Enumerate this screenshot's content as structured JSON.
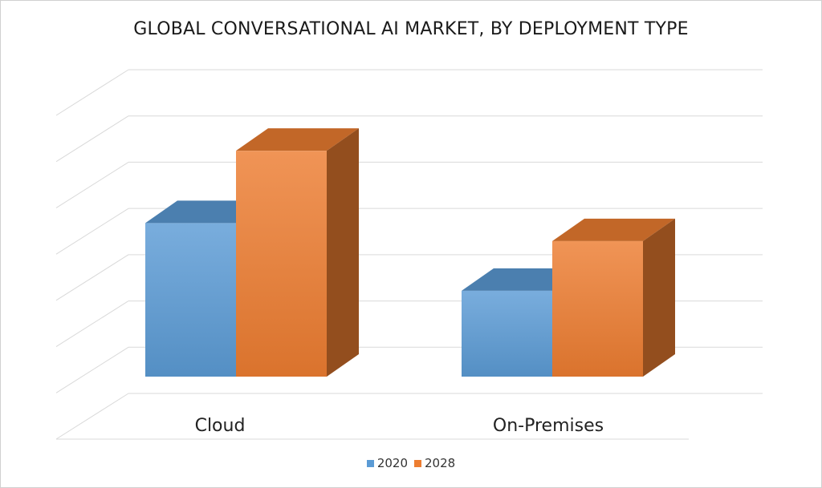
{
  "chart_data": {
    "type": "bar",
    "title": "GLOBAL CONVERSATIONAL AI MARKET, BY DEPLOYMENT TYPE",
    "categories": [
      "Cloud",
      "On-Premises"
    ],
    "series": [
      {
        "name": "2020",
        "values": [
          3.4,
          1.9
        ],
        "color": "#5b9bd5"
      },
      {
        "name": "2028",
        "values": [
          5.0,
          3.0
        ],
        "color": "#ed7d31"
      }
    ],
    "ylim": [
      0,
      7
    ],
    "grid": true,
    "legend_position": "bottom",
    "style": "3d-clustered-column"
  }
}
